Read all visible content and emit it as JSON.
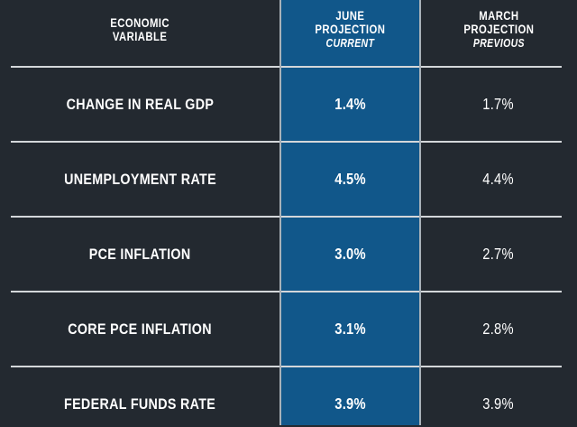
{
  "colors": {
    "background": "#232930",
    "accent_blue": "#11578a",
    "row_divider": "#d4d7da",
    "column_divider": "#a9b1b8",
    "text": "#ffffff"
  },
  "header": {
    "variable": {
      "line1": "ECONOMIC",
      "line2": "VARIABLE"
    },
    "june": {
      "line1": "JUNE",
      "line2": "PROJECTION",
      "subtitle": "CURRENT"
    },
    "march": {
      "line1": "MARCH",
      "line2": "PROJECTION",
      "subtitle": "PREVIOUS"
    }
  },
  "table": {
    "rows": [
      {
        "label": "CHANGE IN REAL GDP",
        "june": "1.4%",
        "march": "1.7%"
      },
      {
        "label": "UNEMPLOYMENT RATE",
        "june": "4.5%",
        "march": "4.4%"
      },
      {
        "label": "PCE INFLATION",
        "june": "3.0%",
        "march": "2.7%"
      },
      {
        "label": "CORE PCE INFLATION",
        "june": "3.1%",
        "march": "2.8%"
      },
      {
        "label": "FEDERAL FUNDS RATE",
        "june": "3.9%",
        "march": "3.9%"
      }
    ]
  },
  "chart_data": {
    "type": "table",
    "columns": [
      "ECONOMIC VARIABLE",
      "JUNE PROJECTION (CURRENT)",
      "MARCH PROJECTION (PREVIOUS)"
    ],
    "rows": [
      [
        "CHANGE IN REAL GDP",
        "1.4%",
        "1.7%"
      ],
      [
        "UNEMPLOYMENT RATE",
        "4.5%",
        "4.4%"
      ],
      [
        "PCE INFLATION",
        "3.0%",
        "2.7%"
      ],
      [
        "CORE PCE INFLATION",
        "3.1%",
        "2.8%"
      ],
      [
        "FEDERAL FUNDS RATE",
        "3.9%",
        "3.9%"
      ]
    ]
  }
}
